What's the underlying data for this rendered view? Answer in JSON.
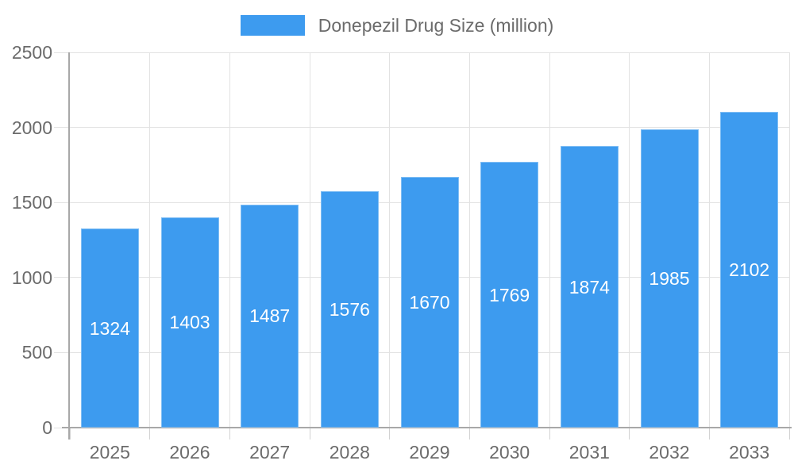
{
  "legend": {
    "label": "Donepezil Drug Size (million)"
  },
  "chart_data": {
    "type": "bar",
    "title": "",
    "xlabel": "",
    "ylabel": "",
    "legend_entries": [
      "Donepezil Drug Size (million)"
    ],
    "legend_position": "top",
    "categories": [
      "2025",
      "2026",
      "2027",
      "2028",
      "2029",
      "2030",
      "2031",
      "2032",
      "2033"
    ],
    "values": [
      1324,
      1403,
      1487,
      1576,
      1670,
      1769,
      1874,
      1985,
      2102
    ],
    "ylim": [
      0,
      2500
    ],
    "yticks": [
      0,
      500,
      1000,
      1500,
      2000,
      2500
    ],
    "grid": true,
    "bar_color": "#3d9bef",
    "bar_label_color": "#ffffff",
    "axis_text_color": "#6b6b6b",
    "grid_color": "#e2e2e2",
    "axis_line_color": "#a8a8a8",
    "background_color": "#ffffff"
  }
}
